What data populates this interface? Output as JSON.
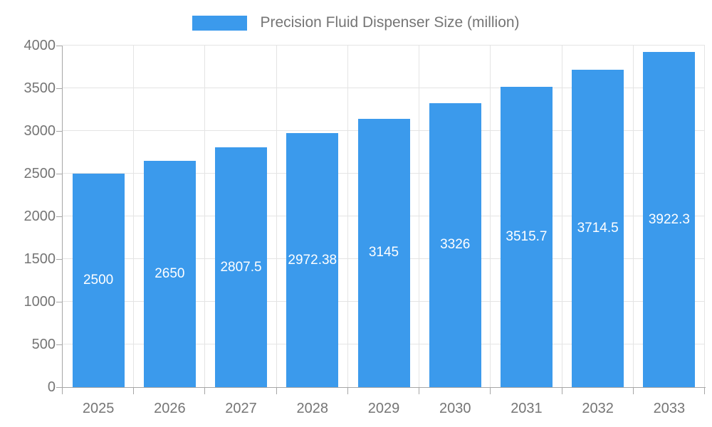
{
  "chart_data": {
    "type": "bar",
    "title": "Precision Fluid Dispenser Size (million)",
    "categories": [
      "2025",
      "2026",
      "2027",
      "2028",
      "2029",
      "2030",
      "2031",
      "2032",
      "2033"
    ],
    "values": [
      2500,
      2650,
      2807.5,
      2972.38,
      3145,
      3326,
      3515.7,
      3714.5,
      3922.3
    ],
    "value_labels": [
      "2500",
      "2650",
      "2807.5",
      "2972.38",
      "3145",
      "3326",
      "3515.7",
      "3714.5",
      "3922.3"
    ],
    "series_name": "Precision Fluid Dispenser Size (million)",
    "xlabel": "",
    "ylabel": "",
    "ylim": [
      0,
      4000
    ],
    "ytick_step": 500,
    "ytick_labels": [
      "0",
      "500",
      "1000",
      "1500",
      "2000",
      "2500",
      "3000",
      "3500",
      "4000"
    ],
    "grid": true,
    "legend_position": "top",
    "value_label_position": "inside-center",
    "colors": {
      "bar": "#3B9AEC",
      "grid": "#E4E4E4",
      "axis": "#A6A6A6",
      "tick_label": "#757575",
      "title": "#757575",
      "value_label": "#FFFFFF",
      "background": "#FFFFFF"
    }
  }
}
